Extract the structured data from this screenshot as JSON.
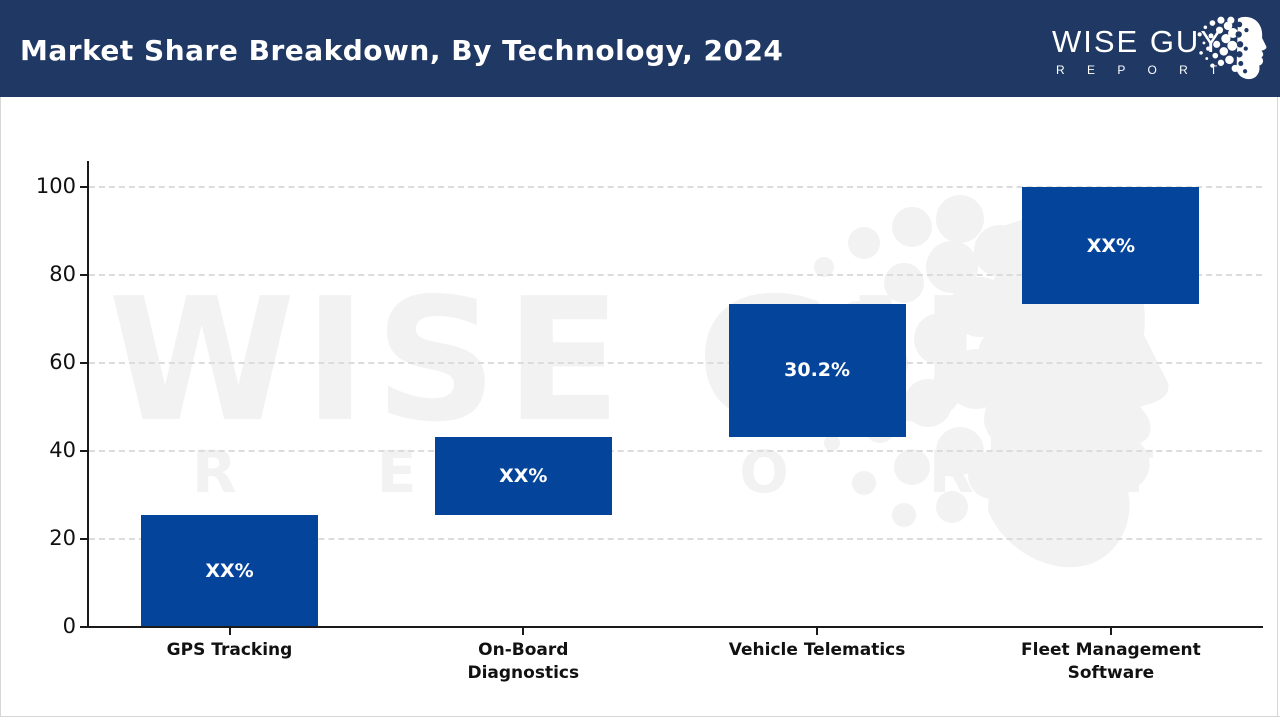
{
  "header": {
    "title": "Market Share Breakdown, By Technology, 2024",
    "logo": {
      "line1": "WISE GUY",
      "line2": "R E P O R T S"
    }
  },
  "watermark": {
    "line1": "WISE GU",
    "line2": "REPORTS"
  },
  "colors": {
    "header_bg": "#203864",
    "bar": "#05449b",
    "grid": "#dcdcdc",
    "axis": "#1a1a1a",
    "watermark": "#f2f2f2",
    "value_label": "#ffffff"
  },
  "chart_data": {
    "type": "bar",
    "subtype": "waterfall-floating-bars",
    "title": "Market Share Breakdown, By Technology, 2024",
    "categories": [
      "GPS Tracking",
      "On-Board Diagnostics",
      "Vehicle Telematics",
      "Fleet Management Software"
    ],
    "category_label_lines": [
      [
        "GPS Tracking"
      ],
      [
        "On-Board",
        "Diagnostics"
      ],
      [
        "Vehicle Telematics"
      ],
      [
        "Fleet Management",
        "Software"
      ]
    ],
    "segments": [
      {
        "category": "GPS Tracking",
        "start": 0,
        "end": 25.4,
        "value": 25.4,
        "display_label": "XX%"
      },
      {
        "category": "On-Board Diagnostics",
        "start": 25.4,
        "end": 43.2,
        "value": 17.8,
        "display_label": "XX%"
      },
      {
        "category": "Vehicle Telematics",
        "start": 43.2,
        "end": 73.4,
        "value": 30.2,
        "display_label": "30.2%"
      },
      {
        "category": "Fleet Management Software",
        "start": 73.4,
        "end": 100,
        "value": 26.6,
        "display_label": "XX%"
      }
    ],
    "yticks": [
      0,
      20,
      40,
      60,
      80,
      100
    ],
    "ylim": [
      0,
      105.5
    ],
    "xlabel": "",
    "ylabel": "",
    "grid": "horizontal-dashed",
    "legend": "none"
  }
}
